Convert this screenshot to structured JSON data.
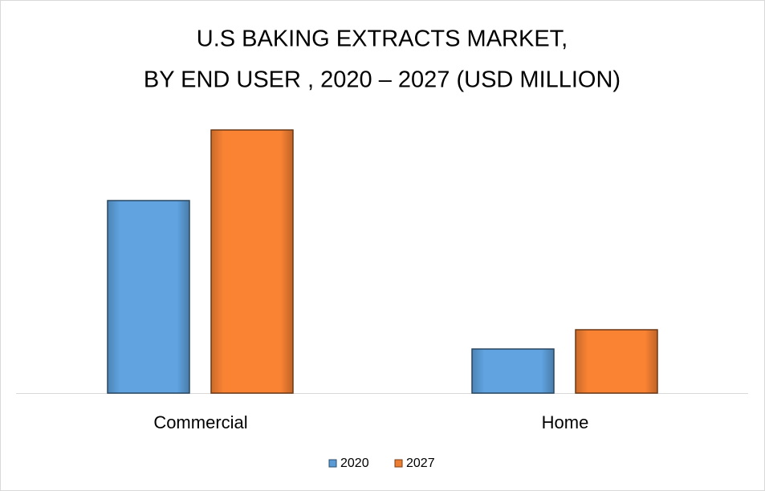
{
  "chart_data": {
    "type": "bar",
    "title": [
      "U.S BAKING EXTRACTS MARKET,",
      "BY END USER , 2020 – 2027 (USD MILLION)"
    ],
    "categories": [
      "Commercial",
      "Home"
    ],
    "series": [
      {
        "name": "2020",
        "color": "#5b9bd5",
        "values": [
          240,
          55
        ]
      },
      {
        "name": "2027",
        "color": "#ed7d31",
        "values": [
          328,
          79
        ]
      }
    ],
    "legend": "bottom"
  }
}
